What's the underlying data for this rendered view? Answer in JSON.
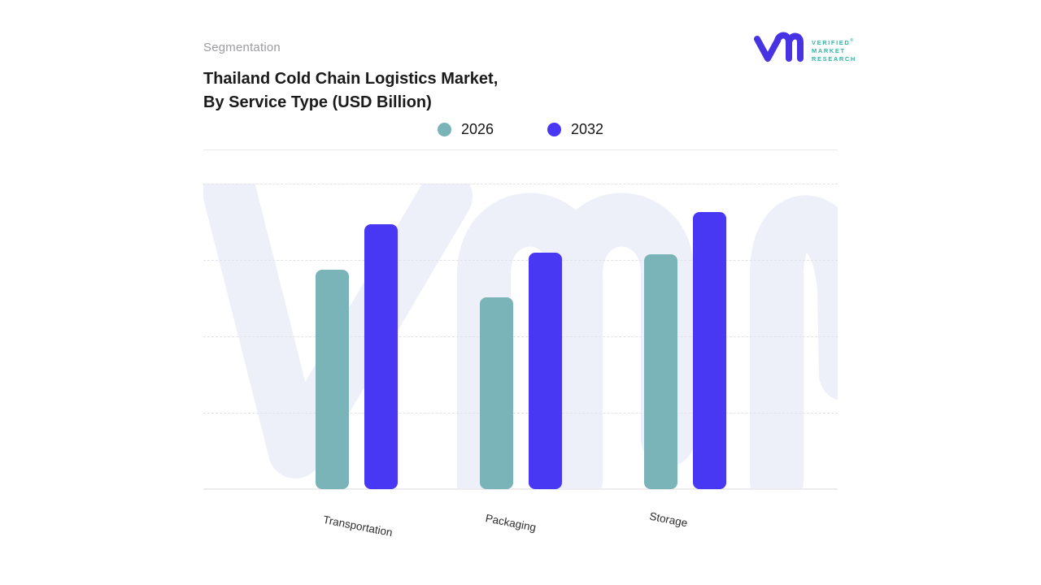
{
  "header": {
    "eyebrow": "Segmentation",
    "title_line1": "Thailand Cold Chain Logistics Market,",
    "title_line2": "By Service Type (USD Billion)"
  },
  "logo": {
    "brand_line1": "VERIFIED",
    "brand_line2": "MARKET",
    "brand_line3": "RESEARCH",
    "registered_mark": "®",
    "mark_color": "#4732e4",
    "text_color": "#2eb5ab"
  },
  "legend": [
    {
      "label": "2026",
      "color": "#7ab4b8"
    },
    {
      "label": "2032",
      "color": "#4838f4"
    }
  ],
  "colors": {
    "series_2026": "#7ab4b8",
    "series_2032": "#4838f4",
    "watermark": "#edeff9",
    "gridline": "#e2e2e7",
    "title_text": "#1a1a1a",
    "eyebrow_text": "#9b9ba1"
  },
  "chart_data": {
    "type": "bar",
    "title": "Thailand Cold Chain Logistics Market, By Service Type (USD Billion)",
    "categories": [
      "Transportation",
      "Packaging",
      "Storage"
    ],
    "series": [
      {
        "name": "2026",
        "color": "#7ab4b8",
        "values": [
          2.87,
          2.5,
          3.07
        ]
      },
      {
        "name": "2032",
        "color": "#4838f4",
        "values": [
          3.46,
          3.09,
          3.62
        ]
      }
    ],
    "xlabel": "",
    "ylabel": "",
    "ylim": [
      0,
      4
    ],
    "y_tick_labels_visible": false,
    "values_note": "y-axis unlabeled in source; values estimated in gridline units (1 unit = one gridline spacing)",
    "grid": "horizontal dashed, 4 lines plus solid baseline",
    "legend_position": "top-center",
    "legend_entries": [
      "2026",
      "2032"
    ]
  }
}
